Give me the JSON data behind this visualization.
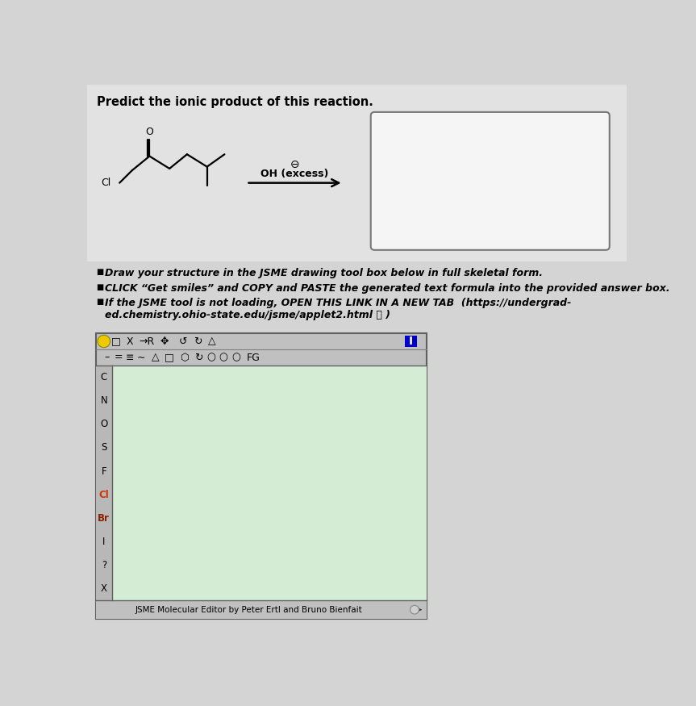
{
  "title": "Predict the ionic product of this reaction.",
  "bg_color": "#d4d4d4",
  "reaction_area_bg": "#e8e8e8",
  "reaction_box_bg": "#f0f0f0",
  "reaction_box_border": "#888888",
  "jsme_bg": "#d4ecd4",
  "jsme_toolbar_bg": "#c0c0c0",
  "jsme_border": "#606060",
  "jsme_side_bg": "#b8b8b8",
  "title_fontsize": 10.5,
  "bullet_fontsize": 9.0,
  "side_labels": [
    "C",
    "N",
    "O",
    "S",
    "F",
    "Cl",
    "Br",
    "I",
    "?",
    "X"
  ],
  "side_label_colors": [
    "#000000",
    "#000000",
    "#000000",
    "#000000",
    "#000000",
    "#cc3300",
    "#882200",
    "#000000",
    "#000000",
    "#000000"
  ],
  "footer_text": "JSME Molecular Editor by Peter Ertl and Bruno Bienfait"
}
